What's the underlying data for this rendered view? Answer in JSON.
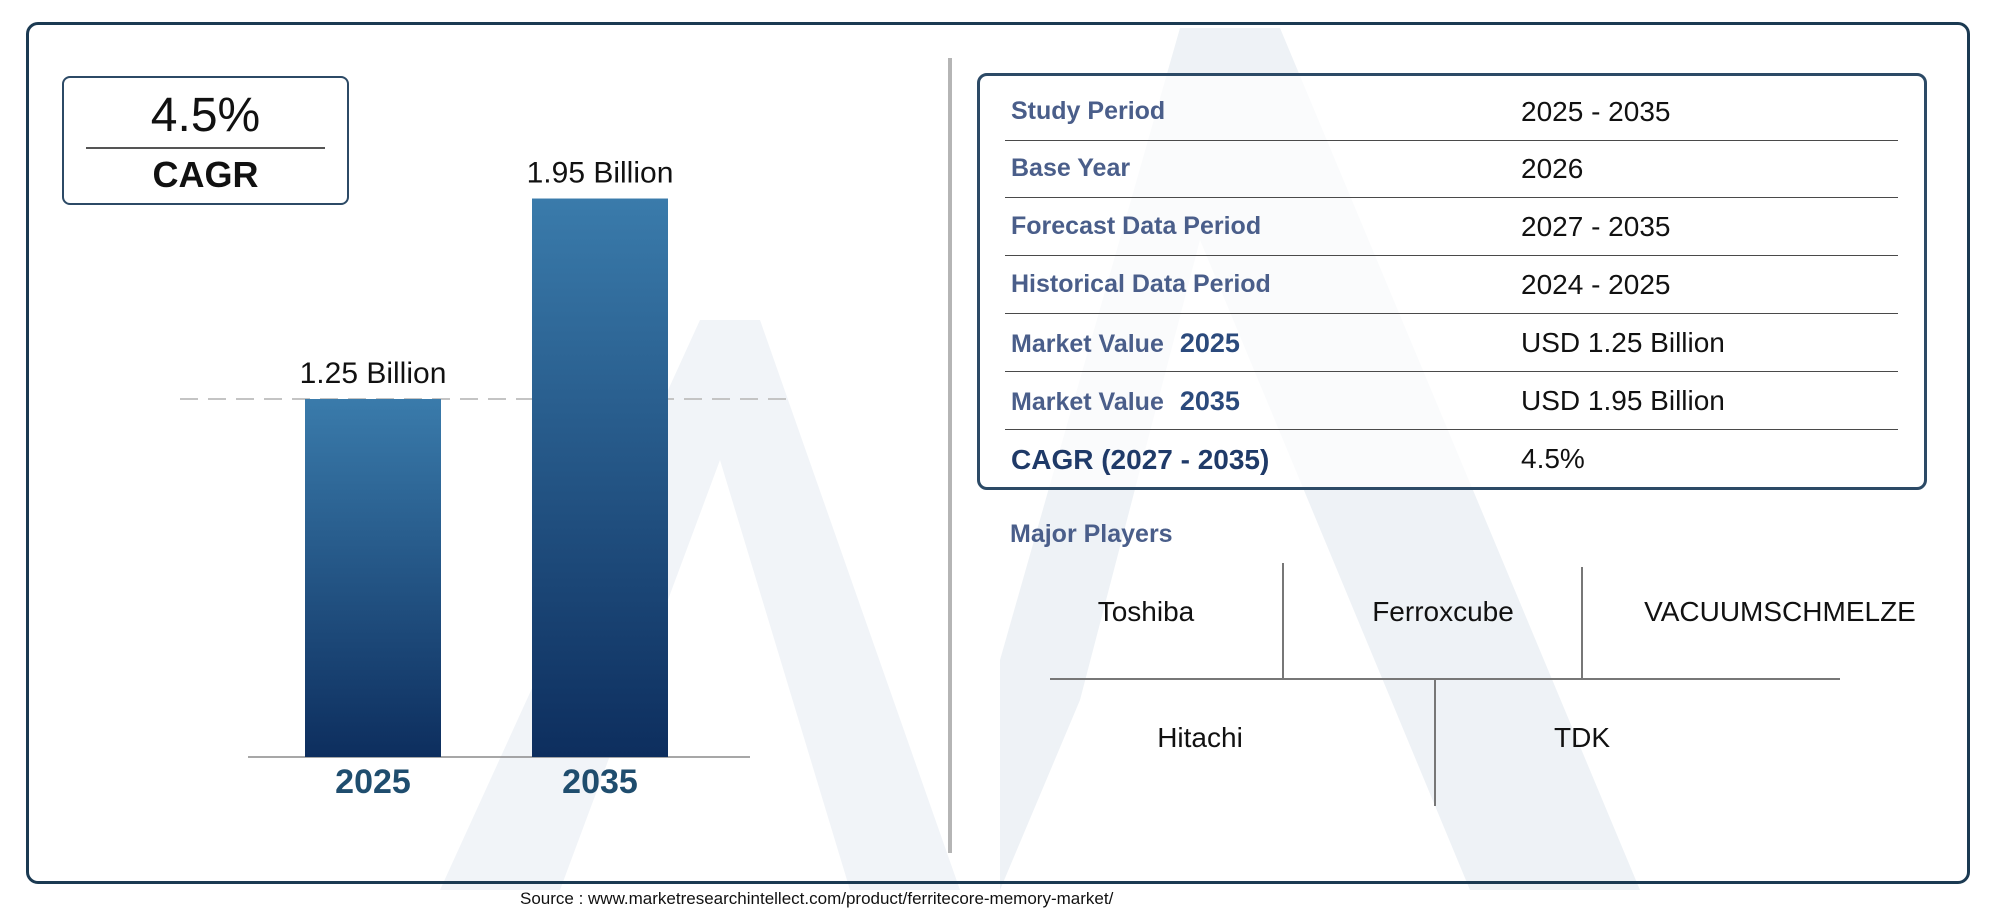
{
  "cagr_card": {
    "value": "4.5%",
    "label": "CAGR"
  },
  "chart_data": {
    "type": "bar",
    "categories": [
      "2025",
      "2035"
    ],
    "values": [
      1.25,
      1.95
    ],
    "value_labels": [
      "1.25 Billion",
      "1.95 Billion"
    ],
    "ylim": [
      0,
      2.5
    ],
    "grid": false,
    "reference_line_at": 1.25,
    "colors": {
      "bar_top": "#3a7bab",
      "bar_bottom": "#0d2e5e",
      "category_label": "#1f4d6e"
    }
  },
  "summary_table": {
    "rows": [
      {
        "label": "Study Period",
        "value": "2025 - 2035"
      },
      {
        "label": "Base Year",
        "value": "2026"
      },
      {
        "label": "Forecast Data Period",
        "value": "2027 - 2035"
      },
      {
        "label": "Historical Data Period",
        "value": "2024 - 2025"
      },
      {
        "label": "Market Value",
        "year": "2025",
        "value": "USD 1.25 Billion"
      },
      {
        "label": "Market Value",
        "year": "2035",
        "value": "USD 1.95 Billion"
      },
      {
        "label": "CAGR (2027 - 2035)",
        "value": "4.5%"
      }
    ]
  },
  "players": {
    "title": "Major Players",
    "names": [
      "Toshiba",
      "Ferroxcube",
      "VACUUMSCHMELZE",
      "Hitachi",
      "TDK"
    ]
  },
  "source": "Source : www.marketresearchintellect.com/product/ferritecore-memory-market/",
  "colors": {
    "frame": "#1b3a52",
    "label_blue": "#4a5e8a",
    "watermark": "#eef2f6"
  }
}
